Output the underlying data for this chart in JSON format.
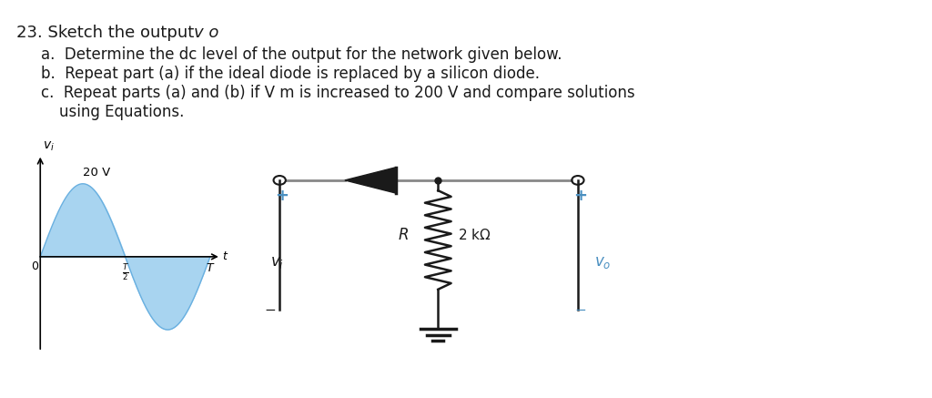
{
  "title_text": "23. Sketch the output v o",
  "line_a": "a.  Determine the dc level of the output for the network given below.",
  "line_b": "b.  Repeat part (a) if the ideal diode is replaced by a silicon diode.",
  "line_c": "c.  Repeat parts (a) and (b) if V m is increased to 200 V and compare solutions",
  "line_d": "      using Equations.",
  "bg_color": "#ffffff",
  "wave_fill_color": "#a8d4f0",
  "wave_line_color": "#6ab0e0",
  "circuit_color": "#1a1a1a",
  "wire_color": "#888888",
  "blue_label_color": "#4a8fc0",
  "text_color": "#1a1a1a",
  "title_fontsize": 13,
  "body_fontsize": 12
}
